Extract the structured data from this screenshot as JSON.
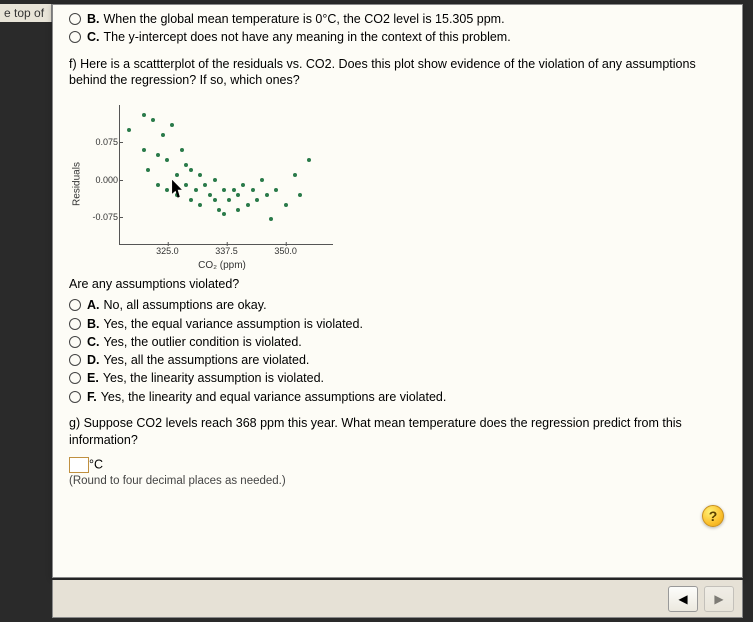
{
  "leftTab": "e top of",
  "topOptions": [
    {
      "letter": "B.",
      "text": "When the global mean temperature is 0°C, the CO2 level is 15.305 ppm."
    },
    {
      "letter": "C.",
      "text": "The y-intercept does not have any meaning in the context of this problem."
    }
  ],
  "questionF": "f) Here is a scattterplot of the residuals vs. CO2. Does this plot show evidence of the violation of any assumptions behind the regression? If so, which ones?",
  "chart": {
    "ylabel": "Residuals",
    "xlabel": "CO₂ (ppm)",
    "yticks": [
      {
        "v": 0.075,
        "label": "0.075"
      },
      {
        "v": 0.0,
        "label": "0.000"
      },
      {
        "v": -0.075,
        "label": "-0.075"
      }
    ],
    "xticks": [
      {
        "v": 325.0,
        "label": "325.0"
      },
      {
        "v": 337.5,
        "label": "337.5"
      },
      {
        "v": 350.0,
        "label": "350.0"
      }
    ],
    "xlim": [
      315,
      360
    ],
    "ylim": [
      -0.13,
      0.15
    ],
    "point_color": "#2a7a4a",
    "points": [
      [
        317,
        0.1
      ],
      [
        320,
        0.13
      ],
      [
        320,
        0.06
      ],
      [
        321,
        0.02
      ],
      [
        322,
        0.12
      ],
      [
        323,
        0.05
      ],
      [
        323,
        -0.01
      ],
      [
        324,
        0.09
      ],
      [
        325,
        0.04
      ],
      [
        325,
        -0.02
      ],
      [
        326,
        0.11
      ],
      [
        327,
        0.01
      ],
      [
        327,
        -0.03
      ],
      [
        328,
        0.06
      ],
      [
        329,
        -0.01
      ],
      [
        329,
        0.03
      ],
      [
        330,
        -0.04
      ],
      [
        330,
        0.02
      ],
      [
        331,
        -0.02
      ],
      [
        332,
        0.01
      ],
      [
        332,
        -0.05
      ],
      [
        333,
        -0.01
      ],
      [
        334,
        -0.03
      ],
      [
        335,
        -0.04
      ],
      [
        335,
        0.0
      ],
      [
        336,
        -0.06
      ],
      [
        337,
        -0.02
      ],
      [
        337,
        -0.07
      ],
      [
        338,
        -0.04
      ],
      [
        339,
        -0.02
      ],
      [
        340,
        -0.06
      ],
      [
        340,
        -0.03
      ],
      [
        341,
        -0.01
      ],
      [
        342,
        -0.05
      ],
      [
        343,
        -0.02
      ],
      [
        344,
        -0.04
      ],
      [
        345,
        0.0
      ],
      [
        346,
        -0.03
      ],
      [
        347,
        -0.08
      ],
      [
        348,
        -0.02
      ],
      [
        350,
        -0.05
      ],
      [
        352,
        0.01
      ],
      [
        353,
        -0.03
      ],
      [
        355,
        0.04
      ]
    ],
    "cursor_xy": [
      326,
      0.0
    ]
  },
  "subQuestion": "Are any assumptions violated?",
  "answerOptions": [
    {
      "letter": "A.",
      "text": "No, all assumptions are okay."
    },
    {
      "letter": "B.",
      "text": "Yes, the equal variance assumption is violated."
    },
    {
      "letter": "C.",
      "text": "Yes, the outlier condition is violated."
    },
    {
      "letter": "D.",
      "text": "Yes, all the assumptions are violated."
    },
    {
      "letter": "E.",
      "text": "Yes, the linearity assumption is violated."
    },
    {
      "letter": "F.",
      "text": "Yes, the linearity and equal variance assumptions are violated."
    }
  ],
  "questionG": "g) Suppose CO2 levels reach 368 ppm this year. What mean temperature does the regression predict from this information?",
  "inputUnit": "°C",
  "roundHint": "(Round to four decimal places as needed.)",
  "helpLabel": "?",
  "navPrev": "◀",
  "navNext": "▶"
}
